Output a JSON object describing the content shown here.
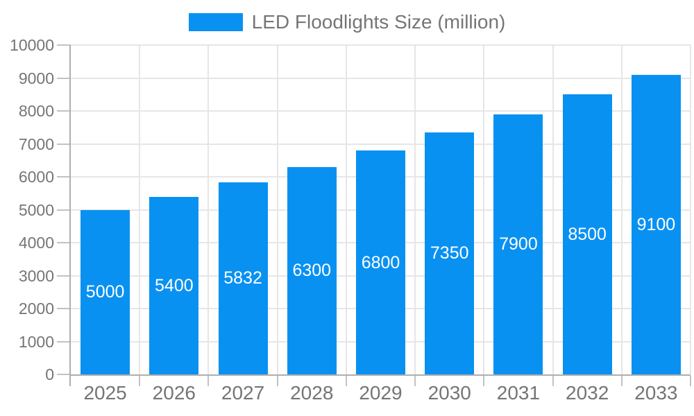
{
  "legend": {
    "label": "LED Floodlights Size (million)"
  },
  "colors": {
    "bar": "#0991f2",
    "bar_label": "#ffffff",
    "axis_line": "#aeaeae",
    "grid_line": "#e6e6e6",
    "tick_line": "#c2c2c2",
    "axis_text": "#757575",
    "legend_text": "#757575",
    "background": "#ffffff"
  },
  "chart_data": {
    "type": "bar",
    "title": "",
    "xlabel": "",
    "ylabel": "",
    "categories": [
      "2025",
      "2026",
      "2027",
      "2028",
      "2029",
      "2030",
      "2031",
      "2032",
      "2033"
    ],
    "series": [
      {
        "name": "LED Floodlights Size (million)",
        "color": "#0991f2",
        "values": [
          5000,
          5400,
          5832,
          6300,
          6800,
          7350,
          7900,
          8500,
          9100
        ]
      }
    ],
    "ylim": [
      0,
      10000
    ],
    "yticks": [
      0,
      1000,
      2000,
      3000,
      4000,
      5000,
      6000,
      7000,
      8000,
      9000,
      10000
    ],
    "grid": true,
    "legend_position": "top-center",
    "value_labels": "inside-middle"
  }
}
